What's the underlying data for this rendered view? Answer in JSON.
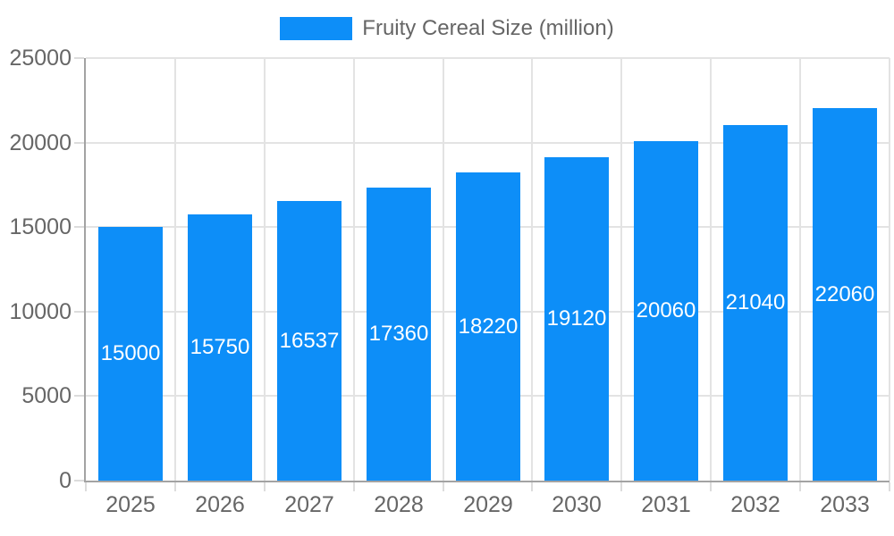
{
  "legend": {
    "label": "Fruity Cereal Size (million)"
  },
  "chart_data": {
    "type": "bar",
    "title": "Fruity Cereal Size (million)",
    "categories": [
      "2025",
      "2026",
      "2027",
      "2028",
      "2029",
      "2030",
      "2031",
      "2032",
      "2033"
    ],
    "values": [
      15000,
      15750,
      16537,
      17360,
      18220,
      19120,
      20060,
      21040,
      22060
    ],
    "bar_labels": [
      "15000",
      "15750",
      "16537",
      "17360",
      "18220",
      "19120",
      "20060",
      "21040",
      "22060"
    ],
    "xlabel": "",
    "ylabel": "",
    "ylim": [
      0,
      25000
    ],
    "ytick_step": 5000,
    "yticks": [
      "0",
      "5000",
      "10000",
      "15000",
      "20000",
      "25000"
    ],
    "grid": true,
    "legend_position": "top",
    "colors": {
      "bar": "#0d8ef8",
      "bar_label": "#ffffff",
      "axis_line": "#a3a3a3",
      "gridline": "#e3e3e3",
      "tick_mark": "#dcdcdc",
      "tick_label": "#666666",
      "legend_text": "#666666",
      "background": "#ffffff"
    }
  }
}
